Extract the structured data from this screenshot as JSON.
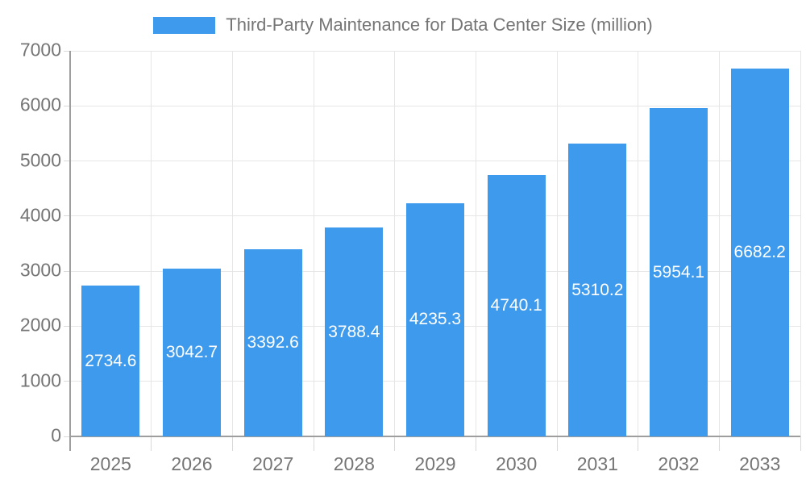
{
  "legend": {
    "title": "Third-Party Maintenance for Data Center Size (million)"
  },
  "colors": {
    "bar": "#3e9aec",
    "grid": "#e6e6e6",
    "axis": "#9e9e9e",
    "tick": "#d9d9d9",
    "label_text": "#757575",
    "value_label_text": "#ffffff",
    "background": "#ffffff"
  },
  "chart_data": {
    "type": "bar",
    "title": "Third-Party Maintenance for Data Center Size (million)",
    "categories": [
      "2025",
      "2026",
      "2027",
      "2028",
      "2029",
      "2030",
      "2031",
      "2032",
      "2033"
    ],
    "values": [
      2734.6,
      3042.7,
      3392.6,
      3788.4,
      4235.3,
      4740.1,
      5310.2,
      5954.1,
      6682.2
    ],
    "value_labels": [
      "2734.6",
      "3042.7",
      "3392.6",
      "3788.4",
      "4235.3",
      "4740.1",
      "5310.2",
      "5954.1",
      "6682.2"
    ],
    "xlabel": "",
    "ylabel": "",
    "ylim": [
      0,
      7000
    ],
    "ytick_interval": 1000,
    "yticks": [
      0,
      1000,
      2000,
      3000,
      4000,
      5000,
      6000,
      7000
    ],
    "grid": true,
    "legend_position": "top-center",
    "value_label_position": "center-inside",
    "bar_width_fraction": 0.72
  }
}
